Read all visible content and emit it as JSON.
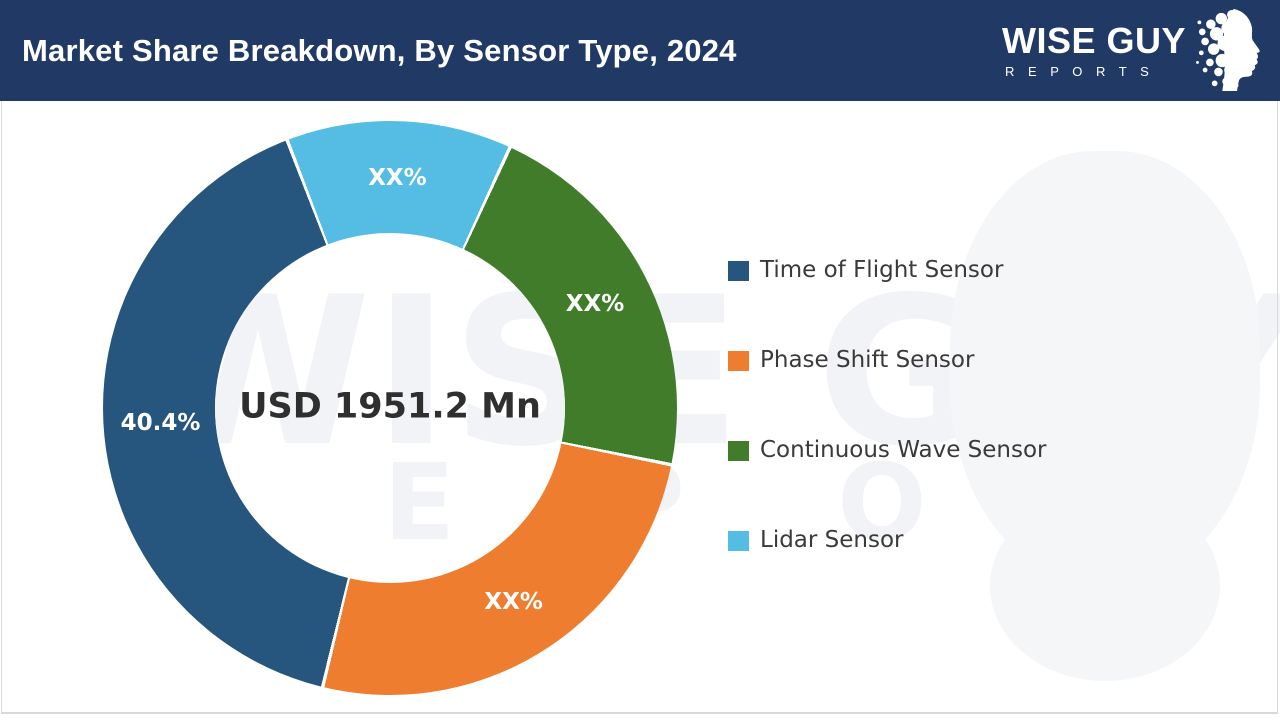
{
  "header": {
    "title": "Market Share Breakdown, By Sensor Type, 2024",
    "logo_line1": "WISE GUY",
    "logo_line2": "R E P O R T S"
  },
  "watermark": {
    "line1": "WISE GUY",
    "line2": "R E P O R T S"
  },
  "chart_data": {
    "type": "pie",
    "subtype": "donut",
    "title": "Market Share Breakdown, By Sensor Type, 2024",
    "center_label": "USD 1951.2 Mn",
    "units": "USD Mn",
    "legend_position": "right",
    "donut_hole_ratio": 0.61,
    "start_angle_deg": -21,
    "counterclockwise": true,
    "segments": [
      {
        "label": "Time of Flight Sensor",
        "value_pct": 40.4,
        "display_label": "40.4%",
        "color": "#26567D"
      },
      {
        "label": "Phase Shift Sensor",
        "value_pct": 25.6,
        "display_label": "XX%",
        "color": "#EE7D2F"
      },
      {
        "label": "Continuous Wave Sensor",
        "value_pct": 21.3,
        "display_label": "XX%",
        "color": "#417C2B"
      },
      {
        "label": "Lidar Sensor",
        "value_pct": 12.7,
        "display_label": "XX%",
        "color": "#55BDE4"
      }
    ]
  },
  "colors": {
    "header_bg": "#203A65",
    "canvas_bg": "#FFFFFF",
    "legend_text": "#3A3A3A",
    "center_text": "#2F2F2F",
    "segment_label_text": "#FFFFFF",
    "watermark": "#F2F3F6",
    "frame_line": "#D9D9D9",
    "gap_color": "#FFFFFF"
  }
}
